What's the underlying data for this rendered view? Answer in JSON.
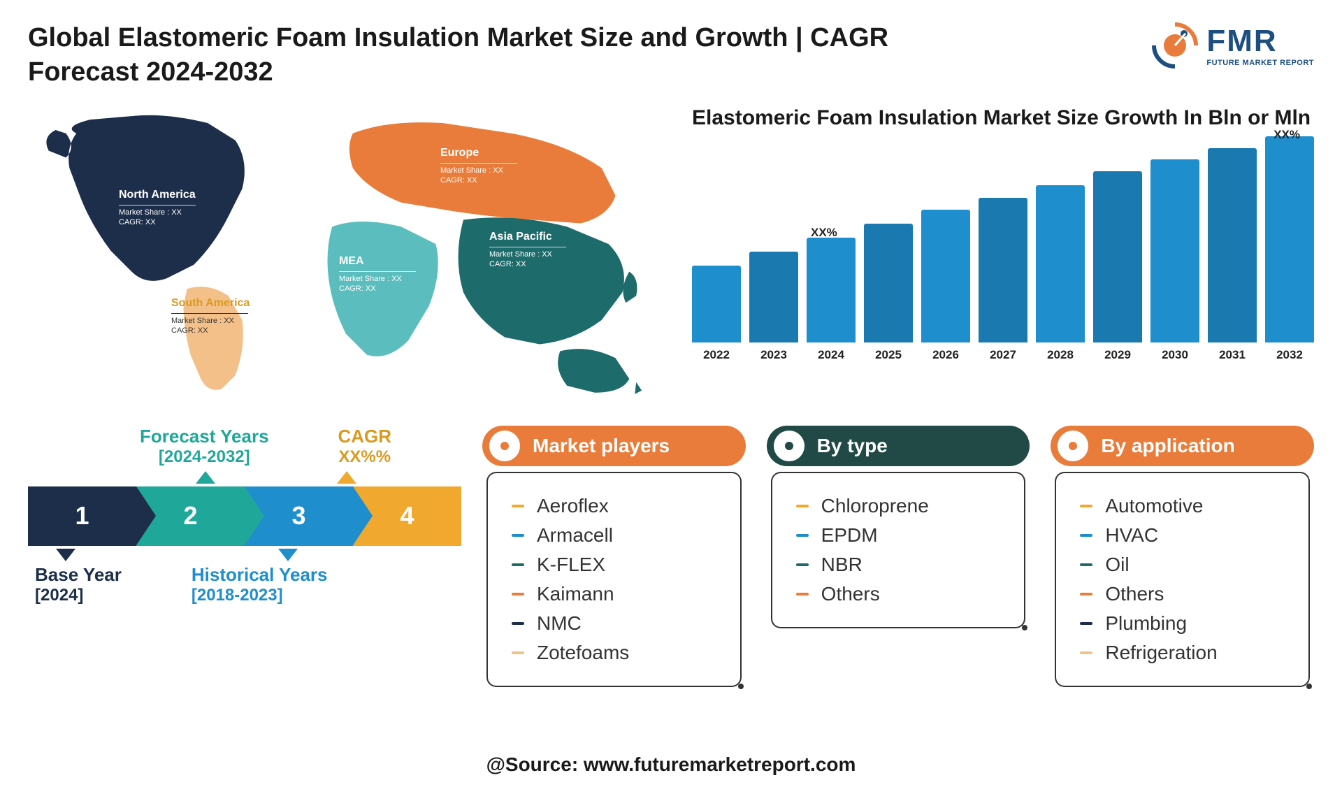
{
  "title": "Global Elastomeric Foam Insulation Market Size and Growth | CAGR Forecast 2024-2032",
  "logo": {
    "fmr": "FMR",
    "sub": "FUTURE MARKET REPORT"
  },
  "colors": {
    "navy": "#1c2e4a",
    "orange": "#e97c3a",
    "teal": "#2aa3a3",
    "dark_teal": "#1e6b6b",
    "peach": "#f4c08a",
    "blue_bar": "#1f8ecd",
    "blue_bar_dark": "#1a7ab0",
    "seg1": "#1c2e4a",
    "seg2": "#1fa79a",
    "seg3": "#1f8ecd",
    "seg4": "#f0a92e",
    "label_teal": "#1fa79a",
    "label_blue": "#1f8ecd",
    "label_gold": "#d99a1f",
    "cat1": "#e97c3a",
    "cat2": "#214a47",
    "cat3": "#e97c3a"
  },
  "regions": {
    "na": {
      "name": "North America",
      "share": "Market Share : XX",
      "cagr": "CAGR: XX",
      "fill": "#1c2e4a"
    },
    "sa": {
      "name": "South America",
      "share": "Market Share : XX",
      "cagr": "CAGR: XX",
      "fill": "#f4c08a"
    },
    "eu": {
      "name": "Europe",
      "share": "Market Share : XX",
      "cagr": "CAGR: XX",
      "fill": "#e97c3a"
    },
    "mea": {
      "name": "MEA",
      "share": "Market Share : XX",
      "cagr": "CAGR: XX",
      "fill": "#5bbdbd"
    },
    "apac": {
      "name": "Asia Pacific",
      "share": "Market Share : XX",
      "cagr": "CAGR: XX",
      "fill": "#1e6b6b"
    }
  },
  "chart": {
    "title": "Elastomeric Foam Insulation Market Size Growth In Bln or Mln",
    "years": [
      "2022",
      "2023",
      "2024",
      "2025",
      "2026",
      "2027",
      "2028",
      "2029",
      "2030",
      "2031",
      "2032"
    ],
    "heights": [
      110,
      130,
      150,
      170,
      190,
      207,
      225,
      245,
      262,
      278,
      295
    ],
    "bar_colors": [
      "#1f8ecd",
      "#1a7ab0",
      "#1f8ecd",
      "#1a7ab0",
      "#1f8ecd",
      "#1a7ab0",
      "#1f8ecd",
      "#1a7ab0",
      "#1f8ecd",
      "#1a7ab0",
      "#1f8ecd"
    ],
    "anno1": "XX%",
    "anno2": "XX%"
  },
  "timeline": {
    "forecast_label": "Forecast Years",
    "forecast_years": "[2024-2032]",
    "cagr_label": "CAGR",
    "cagr_value": "XX%%",
    "base_label": "Base Year",
    "base_years": "[2024]",
    "hist_label": "Historical Years",
    "hist_years": "[2018-2023]",
    "seg_labels": [
      "1",
      "2",
      "3",
      "4"
    ]
  },
  "categories": [
    {
      "title": "Market players",
      "items": [
        "Aeroflex",
        "Armacell",
        "K-FLEX",
        "Kaimann",
        "NMC",
        "Zotefoams"
      ],
      "tick_colors": [
        "#f0a92e",
        "#1f8ecd",
        "#1e6b6b",
        "#e97c3a",
        "#1c2e4a",
        "#f4c08a"
      ]
    },
    {
      "title": "By type",
      "items": [
        "Chloroprene",
        "EPDM",
        "NBR",
        "Others"
      ],
      "tick_colors": [
        "#f0a92e",
        "#1f8ecd",
        "#1e6b6b",
        "#e97c3a"
      ]
    },
    {
      "title": "By application",
      "items": [
        "Automotive",
        "HVAC",
        "Oil",
        "Others",
        "Plumbing",
        "Refrigeration"
      ],
      "tick_colors": [
        "#f0a92e",
        "#1f8ecd",
        "#1e6b6b",
        "#e97c3a",
        "#1c2e4a",
        "#f4c08a"
      ]
    }
  ],
  "source": "@Source: www.futuremarketreport.com"
}
